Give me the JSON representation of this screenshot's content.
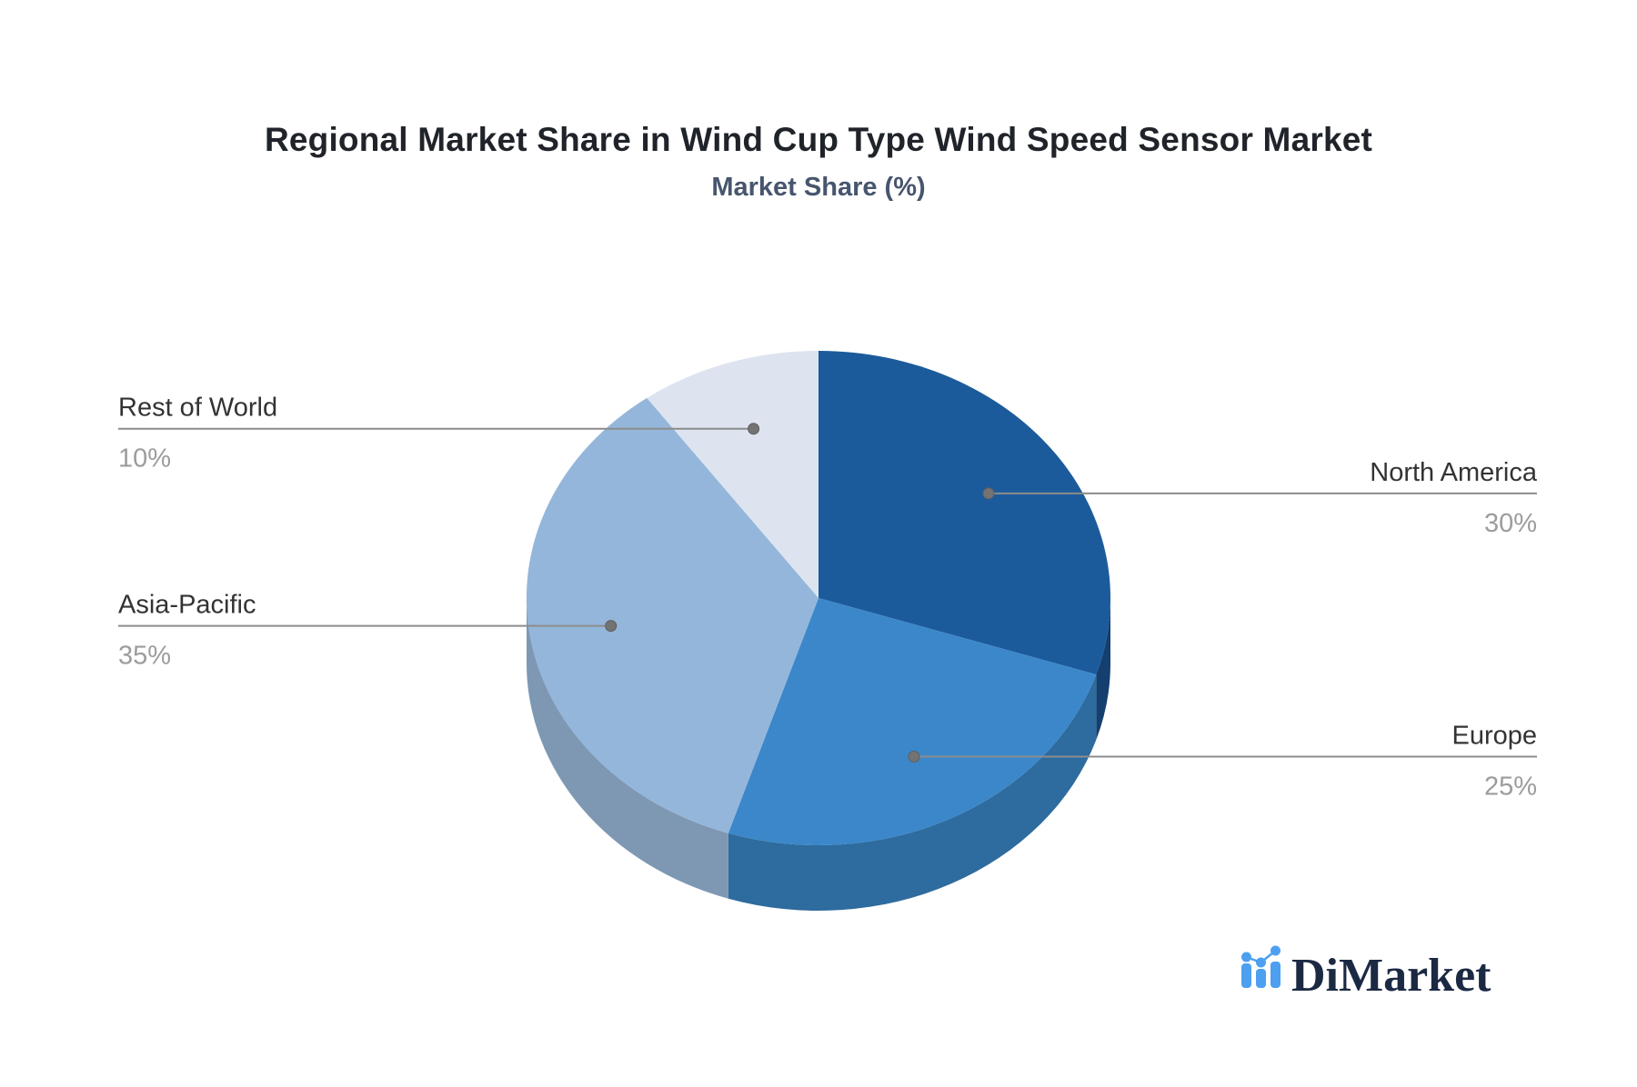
{
  "page": {
    "background": "#ffffff"
  },
  "chart_data": {
    "type": "pie",
    "style": "3d",
    "title": "Regional Market Share in Wind Cup Type Wind Speed Sensor Market",
    "subtitle": "Market Share (%)",
    "unit": "%",
    "start_angle_deg": 0,
    "clockwise": true,
    "legend_position": "none",
    "slices": [
      {
        "label": "North America",
        "value": 30,
        "display": "30%",
        "color": "#1c5b9b",
        "side_color": "#143f6e"
      },
      {
        "label": "Europe",
        "value": 25,
        "display": "25%",
        "color": "#3b87ca",
        "side_color": "#2e6b9e"
      },
      {
        "label": "Asia-Pacific",
        "value": 35,
        "display": "35%",
        "color": "#94b6da",
        "side_color": "#7e98b4"
      },
      {
        "label": "Rest of World",
        "value": 10,
        "display": "10%",
        "color": "#dde4ef",
        "side_color": "#c9d3e3"
      }
    ],
    "label_color": "#333333",
    "pct_color": "#9c9c9c",
    "leader_line_color": "#8c8c8c",
    "leader_dot_color": "#737373"
  },
  "logo": {
    "text": "DiMarket",
    "text_color": "#1b2943",
    "accent_color": "#4da0f0"
  }
}
